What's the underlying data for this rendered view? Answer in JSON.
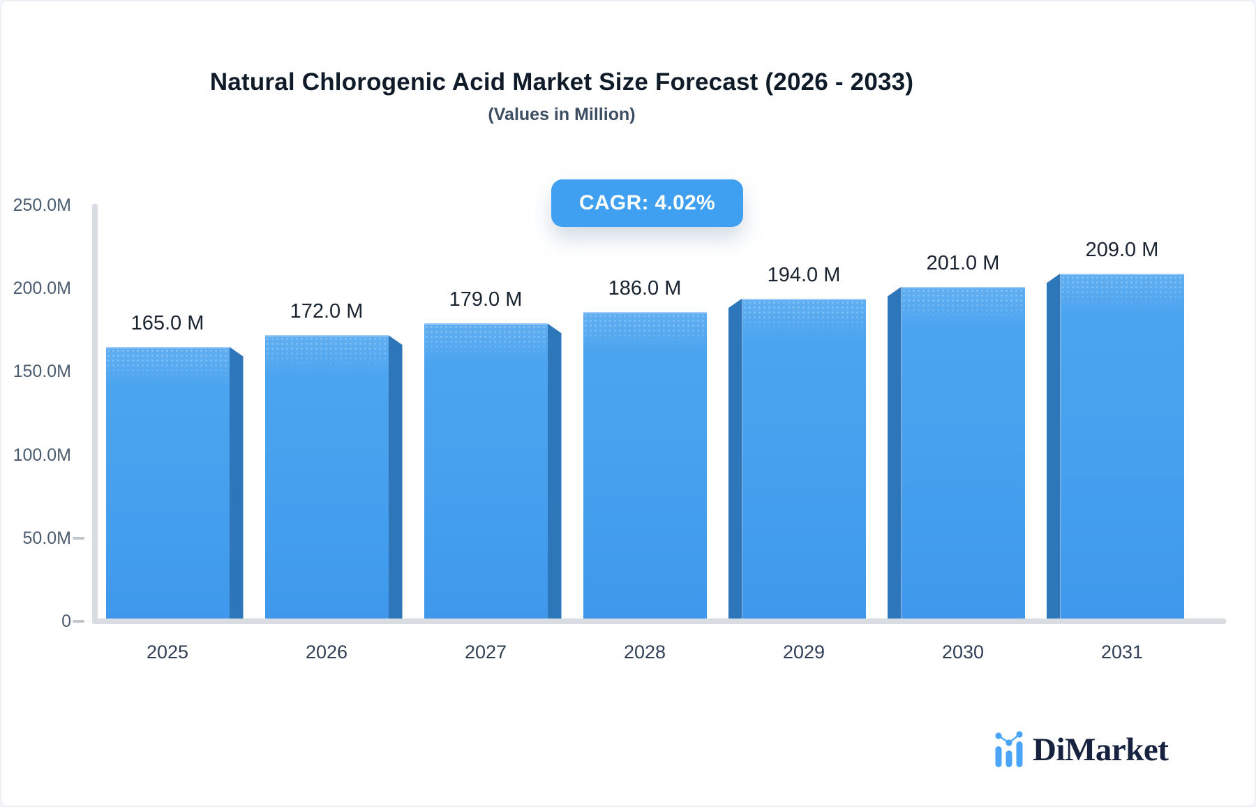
{
  "header": {
    "title": "Natural Chlorogenic Acid Market Size Forecast (2026 - 2033)",
    "subtitle": "(Values in Million)"
  },
  "badge": {
    "label": "CAGR: 4.02%",
    "bg_color": "#3f9ff0",
    "text_color": "#ffffff"
  },
  "chart_data": {
    "type": "bar",
    "title": "Natural Chlorogenic Acid Market Size Forecast (2026 - 2033)",
    "subtitle": "(Values in Million)",
    "unit": "Million",
    "categories": [
      "2025",
      "2026",
      "2027",
      "2028",
      "2029",
      "2030",
      "2031"
    ],
    "values": [
      165,
      172,
      179,
      186,
      194,
      201,
      209
    ],
    "bar_labels": [
      "165.0 M",
      "172.0 M",
      "179.0 M",
      "186.0 M",
      "194.0 M",
      "201.0 M",
      "209.0 M"
    ],
    "xlabel": "",
    "ylabel": "",
    "ylim": [
      0,
      250
    ],
    "grid": false,
    "legend": "none",
    "y_ticks": [
      {
        "value": 250,
        "label": "250.0M",
        "dash": false
      },
      {
        "value": 200,
        "label": "200.0M",
        "dash": false
      },
      {
        "value": 150,
        "label": "150.0M",
        "dash": false
      },
      {
        "value": 100,
        "label": "100.0M",
        "dash": false
      },
      {
        "value": 50,
        "label": "50.0M",
        "dash": true
      },
      {
        "value": 0,
        "label": "0",
        "dash": true
      }
    ],
    "bar_color": "#46a0ee",
    "bar_side_color": "#2e76ba"
  },
  "logo": {
    "icon": "mini-bar-chart-icon",
    "text": "DiMarket",
    "text_color": "#17223f",
    "icon_color": "#4aa4f7"
  }
}
